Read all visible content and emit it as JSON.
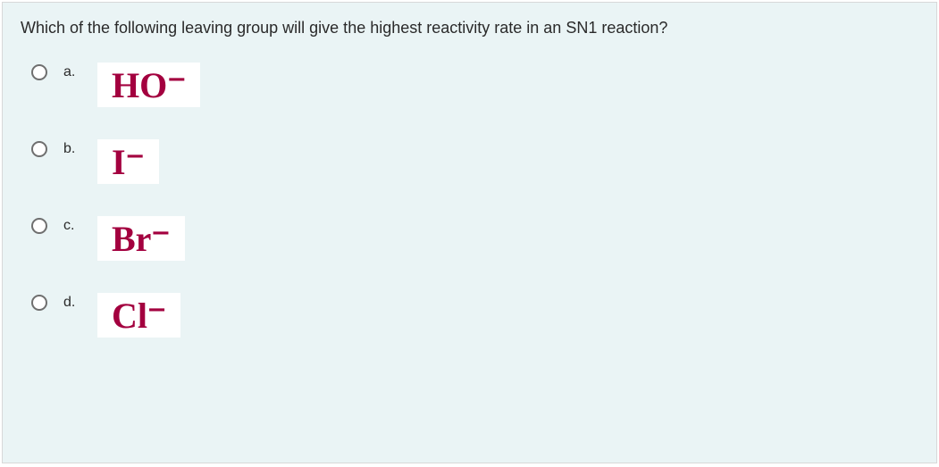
{
  "question": {
    "text": "Which of the following leaving group will give the highest reactivity rate in an SN1 reaction?",
    "text_color": "#2a2a2a",
    "text_fontsize": 18
  },
  "panel": {
    "background_color": "#eaf4f5",
    "border_color": "#d8d8d8"
  },
  "formula_style": {
    "color": "#a3003f",
    "background_color": "#ffffff",
    "fontsize": 40,
    "font_family": "Times New Roman"
  },
  "radio_style": {
    "border_color": "#6f6f6f",
    "size": 18
  },
  "options": [
    {
      "letter": "a.",
      "formula_html": "HO⁻",
      "selected": false
    },
    {
      "letter": "b.",
      "formula_html": "I⁻",
      "selected": false
    },
    {
      "letter": "c.",
      "formula_html": "Br⁻",
      "selected": false
    },
    {
      "letter": "d.",
      "formula_html": "Cl⁻",
      "selected": false
    }
  ]
}
